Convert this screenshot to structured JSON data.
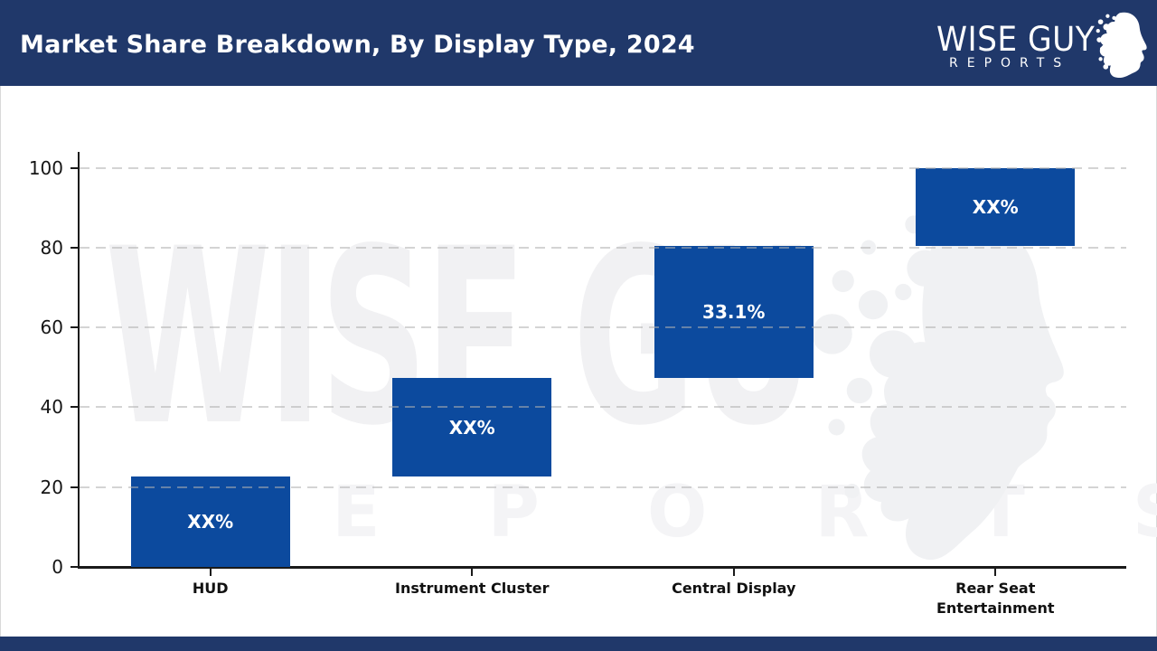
{
  "header": {
    "title": "Market Share Breakdown, By Display Type, 2024",
    "logo": {
      "line1": "WISE GUY",
      "line2": "REPORTS"
    }
  },
  "watermark": {
    "line1": "WISE GU",
    "line2": "R E P O R T S"
  },
  "footer": {},
  "colors": {
    "header_bg": "#20386A",
    "footer_bg": "#20386A",
    "bar": "#0C4A9E",
    "bar_label": "#FFFFFF",
    "grid": "#BEBEBE",
    "axis": "#1A1A1A",
    "watermark": "#F1F1F3"
  },
  "chart_data": {
    "type": "bar",
    "subtype": "waterfall",
    "title": "Market Share Breakdown, By Display Type, 2024",
    "categories": [
      "HUD",
      "Instrument Cluster",
      "Central Display",
      "Rear Seat Entertainment"
    ],
    "bars": [
      {
        "category": "HUD",
        "label": "XX%",
        "start": 0,
        "end": 22.6
      },
      {
        "category": "Instrument Cluster",
        "label": "XX%",
        "start": 22.6,
        "end": 47.4
      },
      {
        "category": "Central Display",
        "label": "33.1%",
        "start": 47.4,
        "end": 80.5
      },
      {
        "category": "Rear Seat Entertainment",
        "label": "XX%",
        "start": 80.5,
        "end": 100
      }
    ],
    "increments": [
      22.6,
      24.8,
      33.1,
      19.5
    ],
    "yticks": [
      0,
      20,
      40,
      60,
      80,
      100
    ],
    "ylim": [
      0,
      104
    ],
    "xlabel": "",
    "ylabel": "",
    "grid": "horizontal dashed, drawn above bars",
    "legend": "none"
  }
}
